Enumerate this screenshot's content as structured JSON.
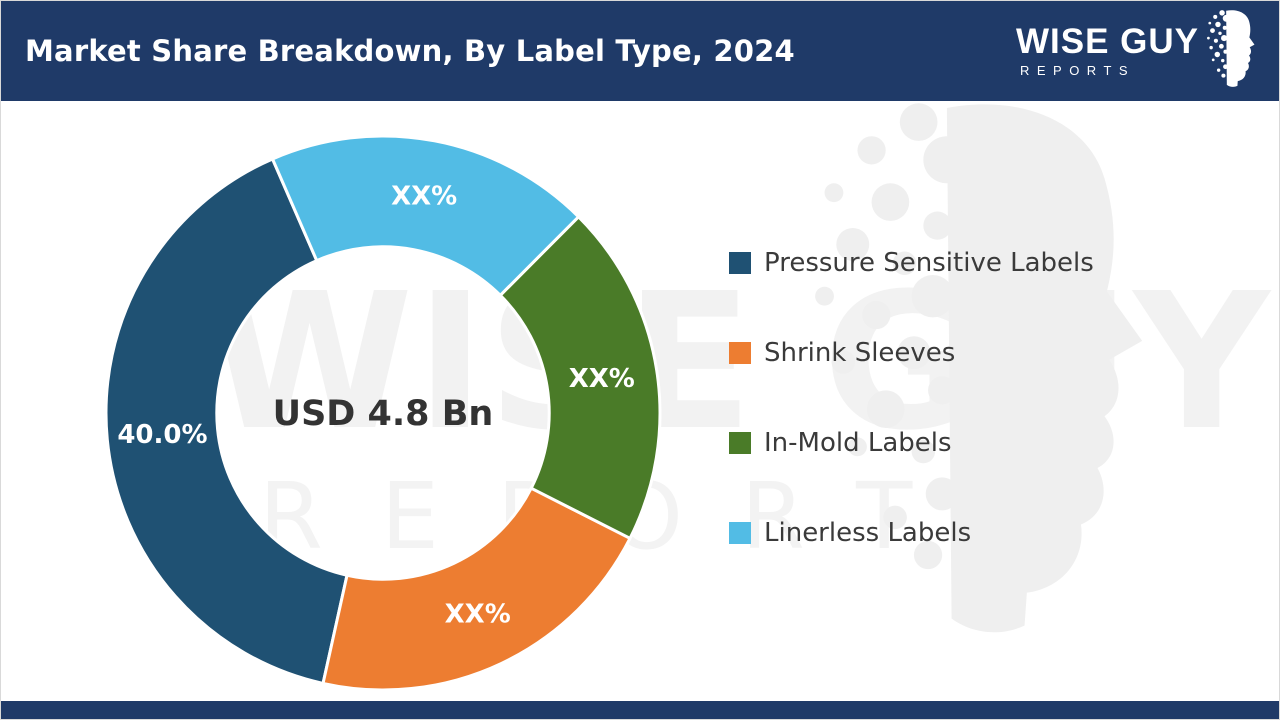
{
  "header": {
    "title": "Market Share Breakdown, By Label Type, 2024",
    "logo": {
      "name": "WISE GUY",
      "sub": "REPORTS"
    }
  },
  "watermark": {
    "line1": "WISE GUY",
    "line2": "REPORTS"
  },
  "chart_data": {
    "type": "pie",
    "subtype": "donut",
    "title": "Market Share Breakdown, By Label Type, 2024",
    "center_label": "USD 4.8 Bn",
    "categories": [
      "Pressure Sensitive Labels",
      "Shrink Sleeves",
      "In-Mold Labels",
      "Linerless Labels"
    ],
    "values": [
      40,
      21,
      20,
      19
    ],
    "displayed_labels": [
      "40.0%",
      "XX%",
      "XX%",
      "XX%"
    ],
    "colors": [
      "#1f5173",
      "#ed7d31",
      "#4a7b28",
      "#52bce5"
    ],
    "start_angle_deg": 113.5,
    "direction": "counterclockwise",
    "hole_ratio": 0.6,
    "legend_position": "right"
  }
}
